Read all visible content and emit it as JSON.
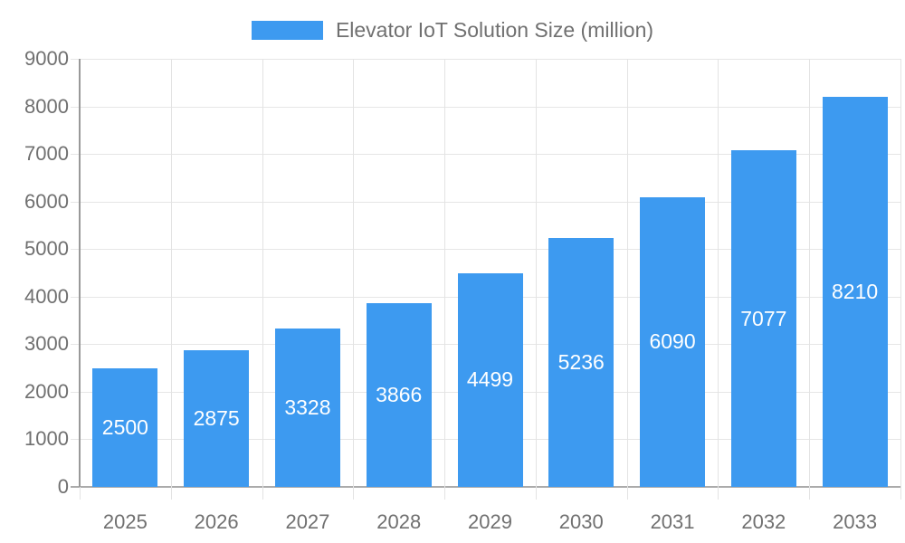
{
  "legend": {
    "label": "Elevator IoT Solution Size (million)"
  },
  "chart_data": {
    "type": "bar",
    "title": "Elevator IoT Solution Size (million)",
    "categories": [
      "2025",
      "2026",
      "2027",
      "2028",
      "2029",
      "2030",
      "2031",
      "2032",
      "2033"
    ],
    "values": [
      2500,
      2875,
      3328,
      3866,
      4499,
      5236,
      6090,
      7077,
      8210
    ],
    "series_name": "Elevator IoT Solution Size (million)",
    "xlabel": "",
    "ylabel": "",
    "ylim": [
      0,
      9000
    ],
    "ytick_interval": 1000,
    "ytick_labels": [
      "0",
      "1000",
      "2000",
      "3000",
      "4000",
      "5000",
      "6000",
      "7000",
      "8000",
      "9000"
    ],
    "grid": true,
    "legend_position": "top-center",
    "value_label_style": "white, centered inside bar"
  },
  "colors": {
    "bar": "#3d9af0",
    "axis_text": "#707070",
    "gridline": "#e6e6e6",
    "gridline_v": "#e3e3e3",
    "baseline": "#ababab",
    "axis_line": "#999999",
    "value_label": "#ffffff",
    "background": "#ffffff"
  }
}
